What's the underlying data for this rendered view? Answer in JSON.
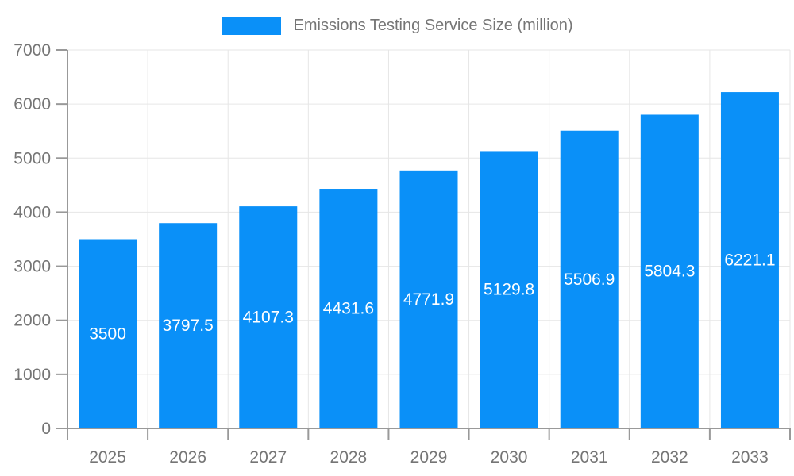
{
  "chart_data": {
    "type": "bar",
    "title": "Emissions Testing Service Size (million)",
    "categories": [
      "2025",
      "2026",
      "2027",
      "2028",
      "2029",
      "2030",
      "2031",
      "2032",
      "2033"
    ],
    "values": [
      3500,
      3797.5,
      4107.3,
      4431.6,
      4771.9,
      5129.8,
      5506.9,
      5804.3,
      6221.1
    ],
    "value_labels": [
      "3500",
      "3797.5",
      "4107.3",
      "4431.6",
      "4771.9",
      "5129.8",
      "5506.9",
      "5804.3",
      "6221.1"
    ],
    "ylim": [
      0,
      7000
    ],
    "ytick_step": 1000,
    "ytick_labels": [
      "0",
      "1000",
      "2000",
      "3000",
      "4000",
      "5000",
      "6000",
      "7000"
    ],
    "xlabel": "",
    "ylabel": "",
    "grid": true,
    "legend_position": "top",
    "colors": {
      "bar": "#0A90F8",
      "grid": "#e6e6e6",
      "axis": "#999999",
      "tick": "#999999",
      "axis_label": "#757575",
      "bar_label": "#ffffff",
      "legend_text": "#757575"
    }
  }
}
